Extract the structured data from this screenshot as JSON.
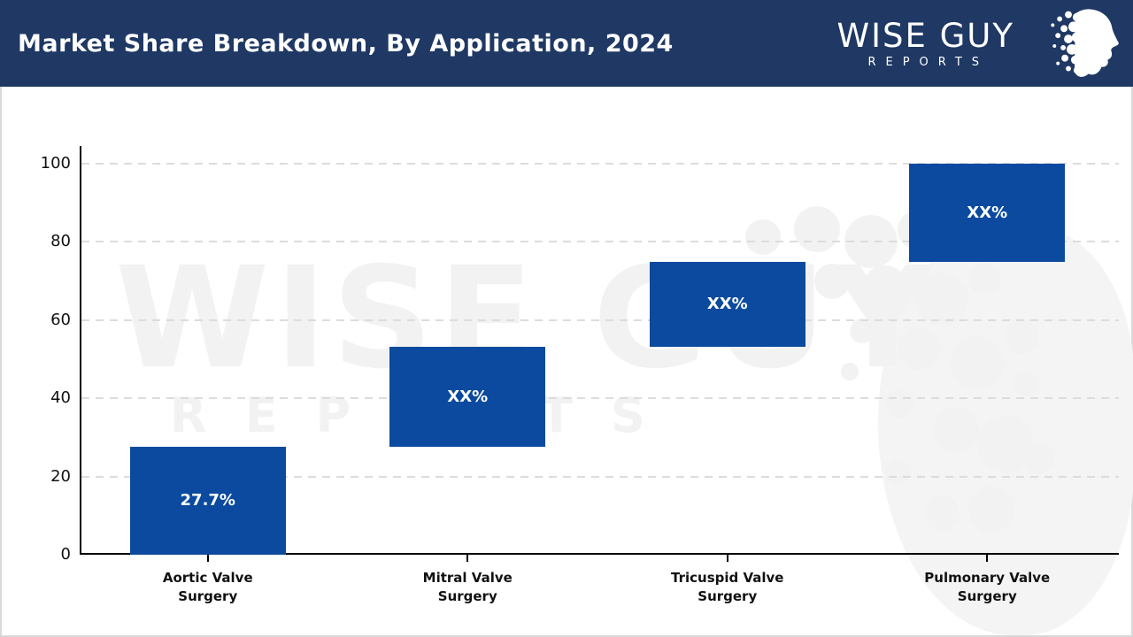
{
  "header": {
    "title": "Market Share Breakdown, By Application, 2024",
    "logo": {
      "line1": "WISE GUY",
      "line2": "REPORTS"
    }
  },
  "watermark": {
    "line1": "WISE GUY",
    "line2": "REPORTS"
  },
  "colors": {
    "header_bg": "#1F3864",
    "bar": "#0B4A9E",
    "bar_label": "#FFFFFF",
    "grid": "#DCDCDC",
    "axis": "#000000",
    "watermark": "#F2F2F2"
  },
  "chart_data": {
    "type": "bar",
    "subtype": "waterfall",
    "title": "Market Share Breakdown, By Application, 2024",
    "xlabel": "",
    "ylabel": "",
    "categories": [
      "Aortic Valve\nSurgery",
      "Mitral Valve\nSurgery",
      "Tricuspid Valve\nSurgery",
      "Pulmonary Valve\nSurgery"
    ],
    "segments": [
      {
        "start": 0,
        "end": 27.7,
        "label": "27.7%"
      },
      {
        "start": 27.7,
        "end": 53.1,
        "label": "XX%"
      },
      {
        "start": 53.1,
        "end": 75.0,
        "label": "XX%"
      },
      {
        "start": 75.0,
        "end": 100,
        "label": "XX%"
      }
    ],
    "ylim": [
      0,
      100
    ],
    "yticks": [
      0,
      20,
      40,
      60,
      80,
      100
    ],
    "grid": "horizontal-dashed",
    "legend": "none"
  }
}
